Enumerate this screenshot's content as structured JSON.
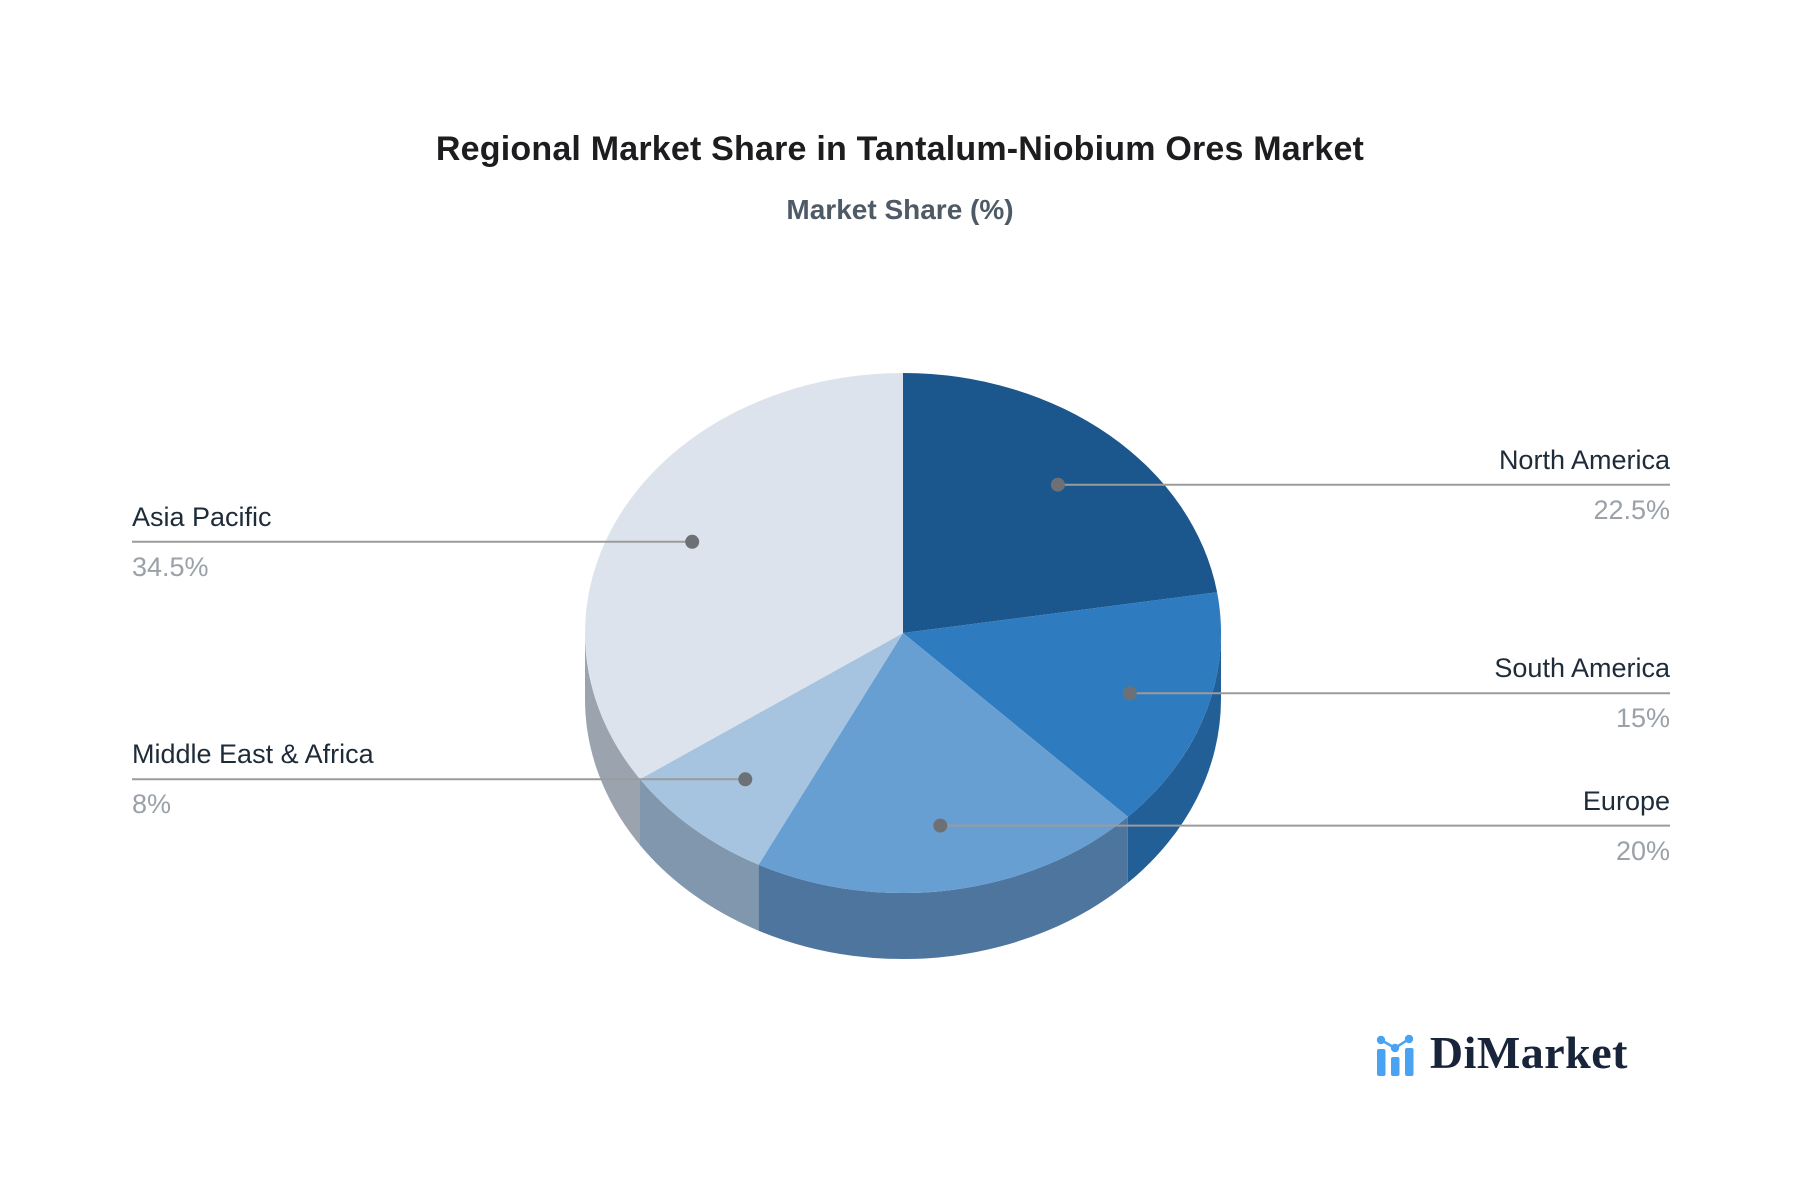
{
  "title": "Regional Market Share in Tantalum-Niobium Ores Market",
  "subtitle": "Market Share (%)",
  "chart_data": {
    "type": "pie",
    "style": "3d-pie",
    "unit": "%",
    "start_angle_deg": 0,
    "direction": "clockwise",
    "slices": [
      {
        "name": "North America",
        "value": 22.5,
        "pct_label": "22.5%",
        "color": "#1b578d",
        "side_color": "#174a79",
        "label_side": "right"
      },
      {
        "name": "South America",
        "value": 15,
        "pct_label": "15%",
        "color": "#2e7bbf",
        "side_color": "#235f97",
        "label_side": "right"
      },
      {
        "name": "Europe",
        "value": 20,
        "pct_label": "20%",
        "color": "#689fd3",
        "side_color": "#4d759d",
        "label_side": "right"
      },
      {
        "name": "Middle East & Africa",
        "value": 8,
        "pct_label": "8%",
        "color": "#a6c4e0",
        "side_color": "#8097ad",
        "label_side": "left"
      },
      {
        "name": "Asia Pacific",
        "value": 34.5,
        "pct_label": "34.5%",
        "color": "#dde3ed",
        "side_color": "#9ba4ae",
        "label_side": "left"
      }
    ],
    "label_line_color": "#9b9b9b",
    "label_dot_color": "#6d7175",
    "label_name_color": "#1e2b38",
    "label_value_color": "#9aa1a8",
    "legend": "none",
    "background": "#ffffff"
  },
  "logo": {
    "text": "DiMarket",
    "icon": "bar-line-chart-icon",
    "accent_color": "#4aa3f2",
    "text_color": "#18243a"
  }
}
